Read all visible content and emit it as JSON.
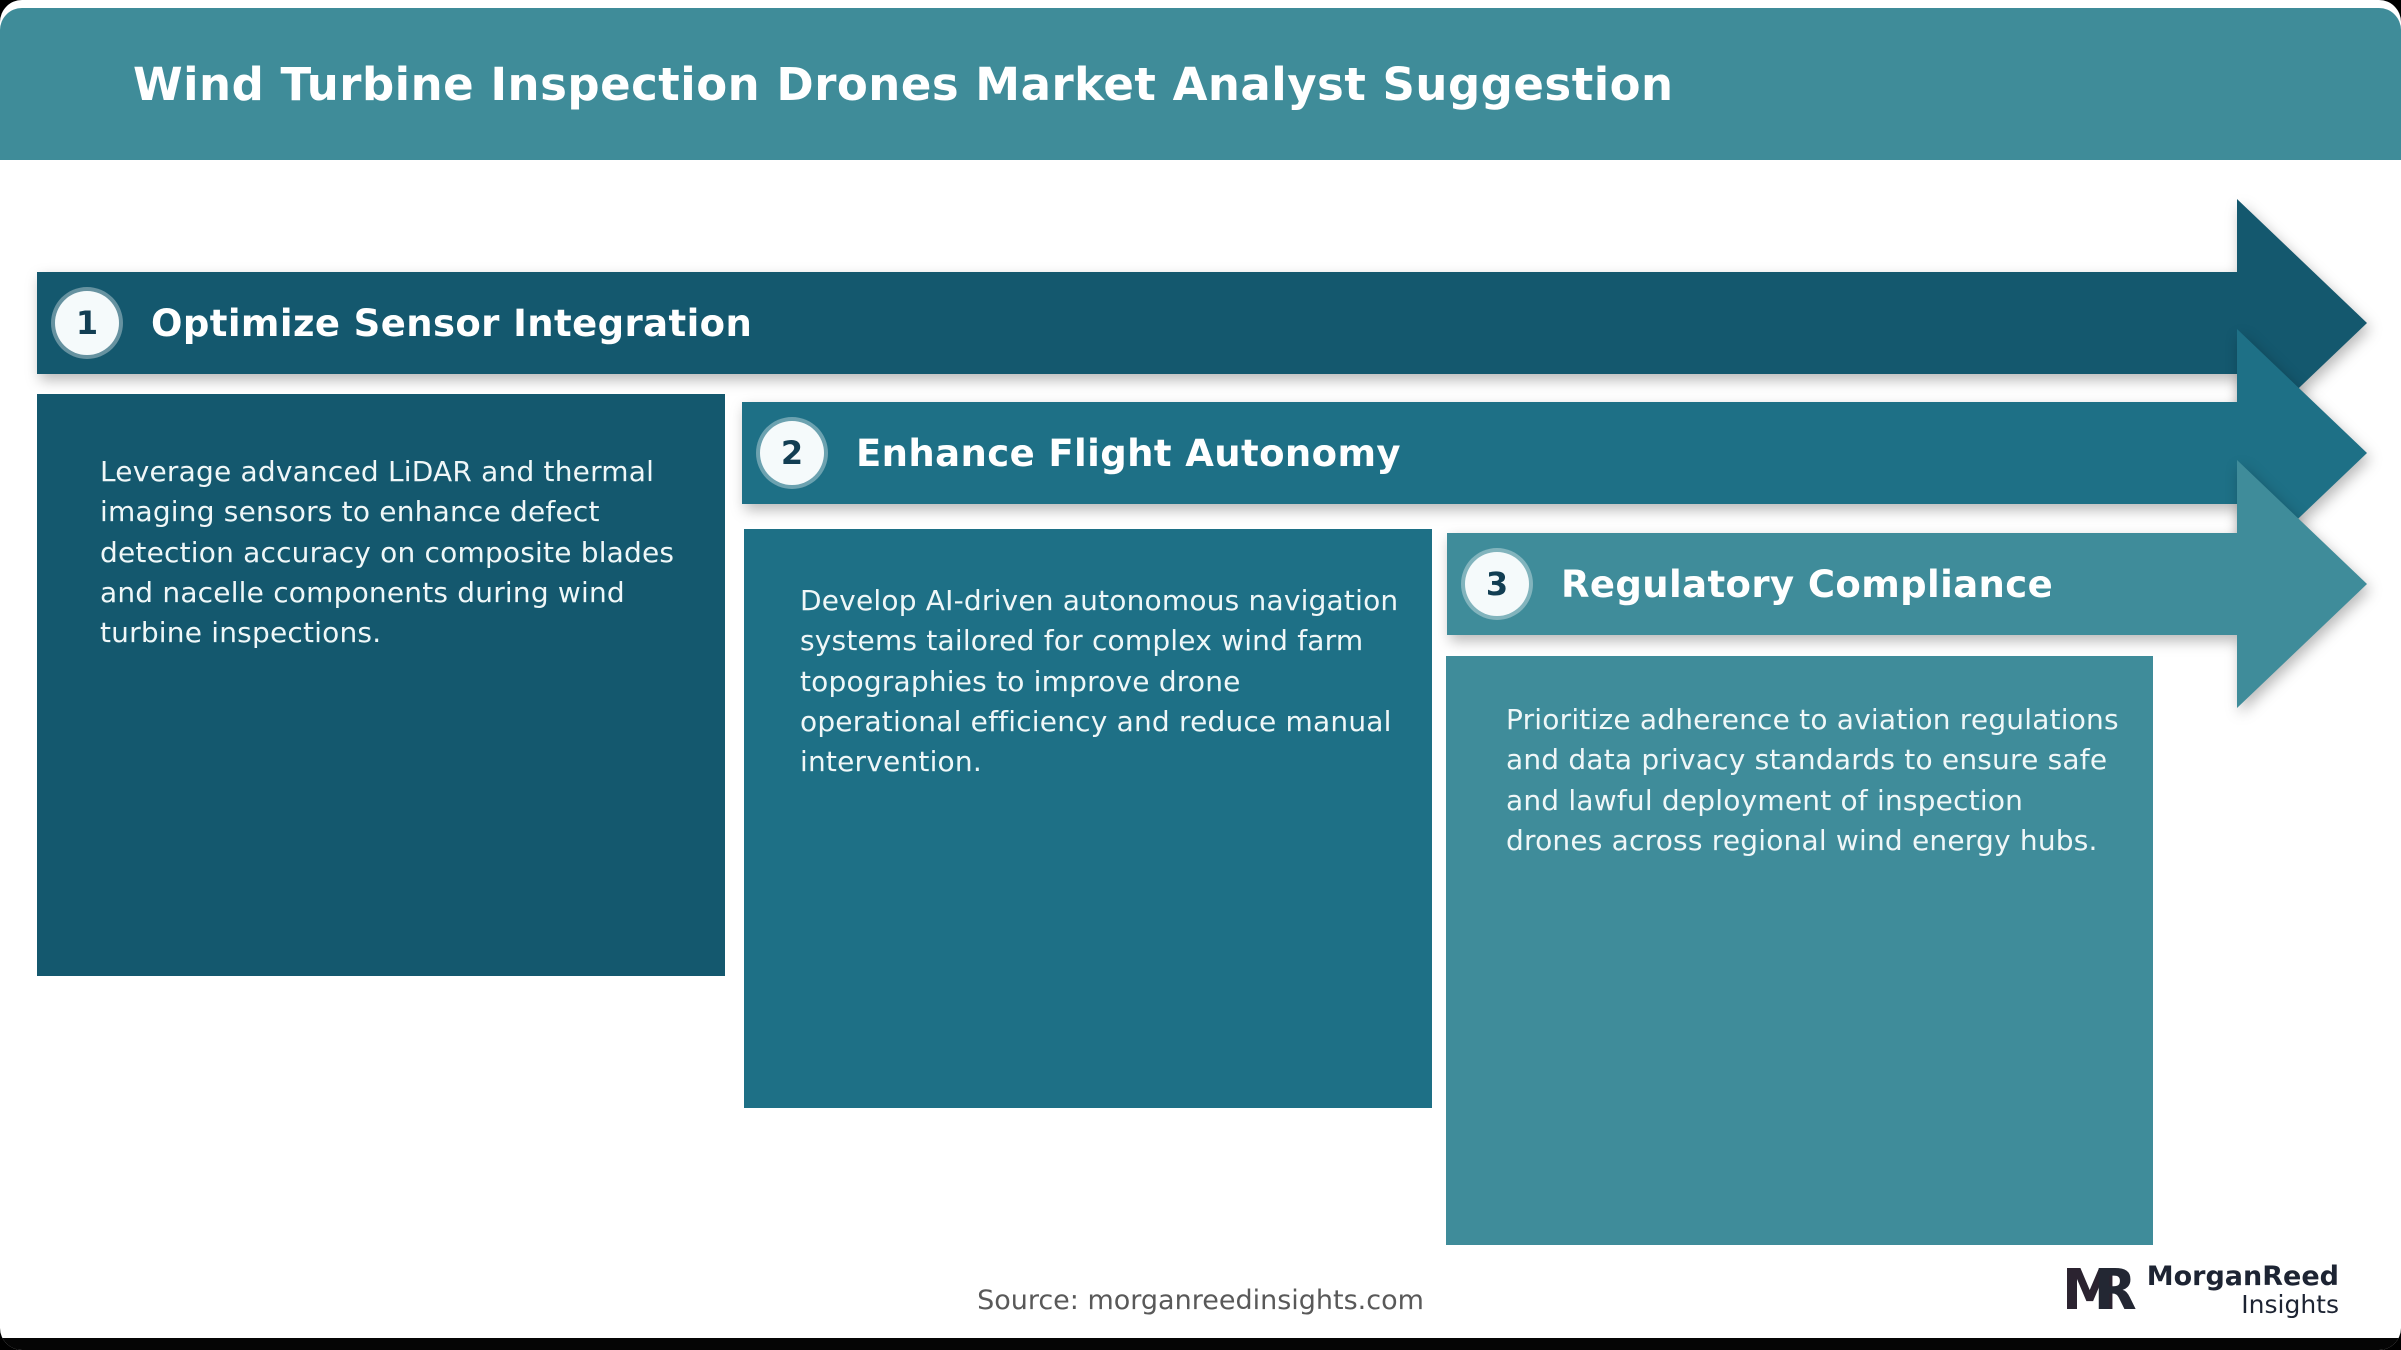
{
  "header": {
    "title": "Wind Turbine Inspection Drones Market Analyst Suggestion"
  },
  "steps": [
    {
      "number": "1",
      "title": "Optimize Sensor Integration",
      "description": "Leverage advanced LiDAR and thermal imaging sensors to enhance defect detection accuracy on composite blades and nacelle components during wind turbine inspections.",
      "color": "#14586E"
    },
    {
      "number": "2",
      "title": "Enhance Flight Autonomy",
      "description": "Develop AI-driven autonomous navigation systems tailored for complex wind farm topographies to improve drone operational efficiency and reduce manual intervention.",
      "color": "#1E7086"
    },
    {
      "number": "3",
      "title": "Regulatory Compliance",
      "description": "Prioritize adherence to aviation regulations and data privacy standards to ensure safe and lawful deployment of inspection drones across regional wind energy hubs.",
      "color": "#3F8C9A"
    }
  ],
  "footer": {
    "source": "Source: morganreedinsights.com",
    "logo": {
      "monogram_m": "M",
      "monogram_r": "R",
      "name": "MorganReed",
      "tagline": "Insights"
    }
  },
  "colors": {
    "header_bg": "#3F8C99",
    "step1": "#14586E",
    "step2": "#1E7086",
    "step3": "#3F8C9A",
    "text_on_dark": "#EFF7F8",
    "source_text": "#595959"
  }
}
